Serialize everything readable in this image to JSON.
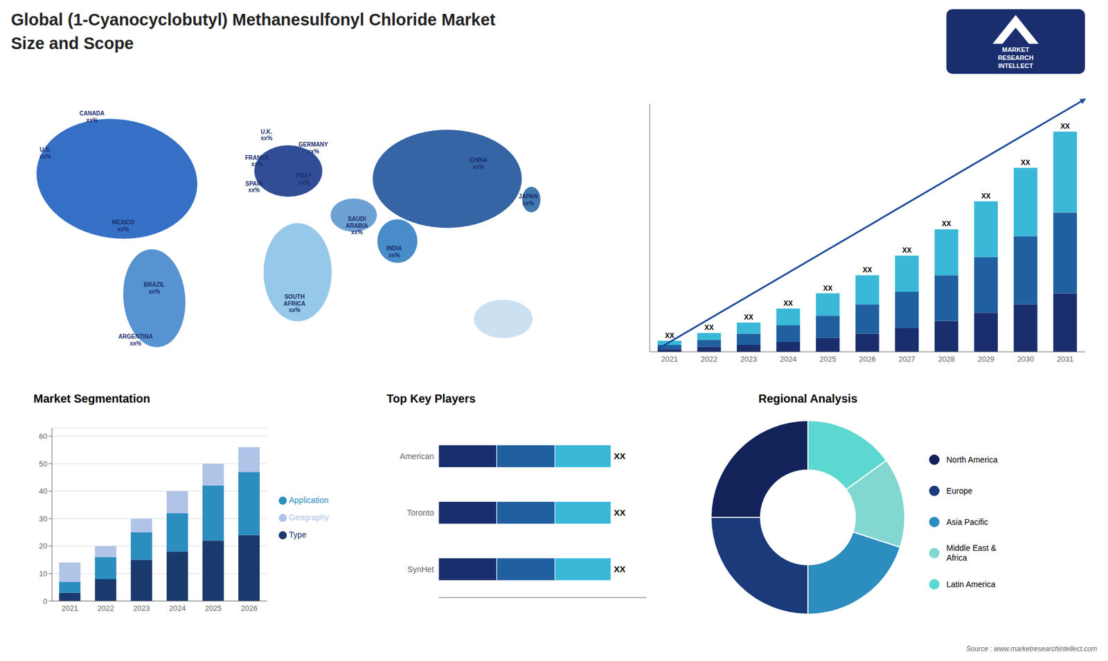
{
  "chart_data": [
    {
      "type": "text",
      "title": "Global (1-Cyanocyclobutyl) Methanesulfonyl Chloride Market\nSize and Scope",
      "annotations": [
        "MARKET\nRESEARCH\nINTELLECT",
        "Source : www.marketresearchintellect.com"
      ]
    },
    {
      "type": "map",
      "annotations": [
        "U.S.\nxx%",
        "CANADA\nxx%",
        "MEXICO\nxx%",
        "BRAZIL\nxx%",
        "ARGENTINA\nxx%",
        "U.K.\nxx%",
        "FRANCE\nxx%",
        "SPAIN\nxx%",
        "GERMANY\nxx%",
        "ITALY\nxx%",
        "SAUDI\nARABIA\nxx%",
        "SOUTH\nAFRICA\nxx%",
        "INDIA\nxx%",
        "CHINA\nxx%",
        "JAPAN\nxx%"
      ]
    },
    {
      "type": "bar",
      "stacked": true,
      "categories": [
        "2021",
        "2022",
        "2023",
        "2024",
        "2025",
        "2026",
        "2027",
        "2028",
        "2029",
        "2030",
        "2031"
      ],
      "series": [
        {
          "color": "#1a2e6e",
          "values": [
            1,
            1.8,
            2.5,
            3.5,
            5,
            6.5,
            8.5,
            11,
            14,
            17,
            21
          ]
        },
        {
          "color": "#2060a0",
          "values": [
            1.5,
            2.5,
            4,
            6,
            8,
            10.5,
            13,
            16.5,
            20,
            24.5,
            29
          ]
        },
        {
          "color": "#3ab8d8",
          "values": [
            1.5,
            2.5,
            4,
            6,
            8,
            10.5,
            13,
            16.5,
            20,
            24.5,
            29
          ]
        }
      ],
      "ylim": [
        0,
        89
      ],
      "tick_labels": "x",
      "annotations": [
        "XX",
        "XX",
        "XX",
        "XX",
        "XX",
        "XX",
        "XX",
        "XX",
        "XX",
        "XX",
        "XX"
      ]
    },
    {
      "type": "bar",
      "title": "Market Segmentation",
      "stacked": true,
      "categories": [
        "2021",
        "2022",
        "2023",
        "2024",
        "2025",
        "2026"
      ],
      "series": [
        {
          "name": "Type",
          "color": "#1a3a6e",
          "values": [
            3,
            8,
            15,
            18,
            22,
            24
          ]
        },
        {
          "name": "Application",
          "color": "#2c8dbf",
          "values": [
            4,
            8,
            10,
            14,
            20,
            23
          ]
        },
        {
          "name": "Geography",
          "color": "#b0c4e8",
          "values": [
            7,
            4,
            5,
            8,
            8,
            9
          ]
        }
      ],
      "ylim": [
        0,
        63
      ],
      "yticks": [
        0,
        10,
        20,
        30,
        40,
        50,
        60
      ],
      "grid": true,
      "legend": "right"
    },
    {
      "type": "bar",
      "title": "Top Key Players",
      "orientation": "horizontal",
      "stacked": true,
      "categories": [
        "American",
        "Toronto",
        "SynHet"
      ],
      "series": [
        {
          "color": "#1a2e6e",
          "values": [
            0.28,
            0.28,
            0.28
          ]
        },
        {
          "color": "#2060a0",
          "values": [
            0.28,
            0.28,
            0.28
          ]
        },
        {
          "color": "#3ab8d8",
          "values": [
            0.27,
            0.27,
            0.27
          ]
        }
      ],
      "xlim": [
        0,
        1
      ],
      "tick_labels": "y",
      "annotations": [
        "XX",
        "XX",
        "XX"
      ]
    },
    {
      "type": "pie",
      "title": "Regional Analysis",
      "categories": [
        "Latin America",
        "Middle East &\nAfrica",
        "Asia Pacific",
        "Europe",
        "North America"
      ],
      "values": [
        15,
        15,
        20,
        25,
        25
      ],
      "colors": [
        "#5dd8d0",
        "#82d8d0",
        "#2c8dbf",
        "#1a3a7a",
        "#12235a"
      ],
      "legend": "right"
    }
  ]
}
